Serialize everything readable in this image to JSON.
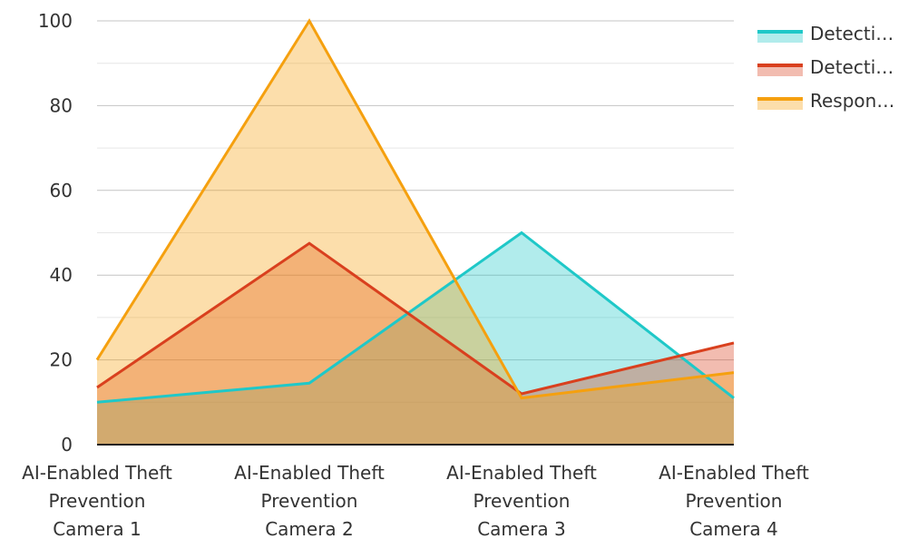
{
  "chart_data": {
    "type": "area",
    "title": "",
    "xlabel": "",
    "ylabel": "",
    "ylim": [
      0,
      100
    ],
    "yticks": [
      0,
      20,
      40,
      60,
      80,
      100
    ],
    "grid": true,
    "legend_position": "top-right",
    "categories": [
      [
        "AI-Enabled Theft",
        "Prevention",
        "Camera 1"
      ],
      [
        "AI-Enabled Theft",
        "Prevention",
        "Camera 2"
      ],
      [
        "AI-Enabled Theft",
        "Prevention",
        "Camera 3"
      ],
      [
        "AI-Enabled Theft",
        "Prevention",
        "Camera 4"
      ]
    ],
    "series": [
      {
        "name": "Detecti…",
        "color": "#1FC8C8",
        "fill": "#AEEBEB",
        "values": [
          10,
          14.5,
          50,
          11
        ]
      },
      {
        "name": "Detecti…",
        "color": "#D9401E",
        "fill": "#EFB3A8",
        "values": [
          13.5,
          47.5,
          12,
          24
        ]
      },
      {
        "name": "Respon…",
        "color": "#F5A00F",
        "fill": "#FCDDAA",
        "values": [
          20,
          100,
          11,
          17
        ]
      }
    ]
  }
}
